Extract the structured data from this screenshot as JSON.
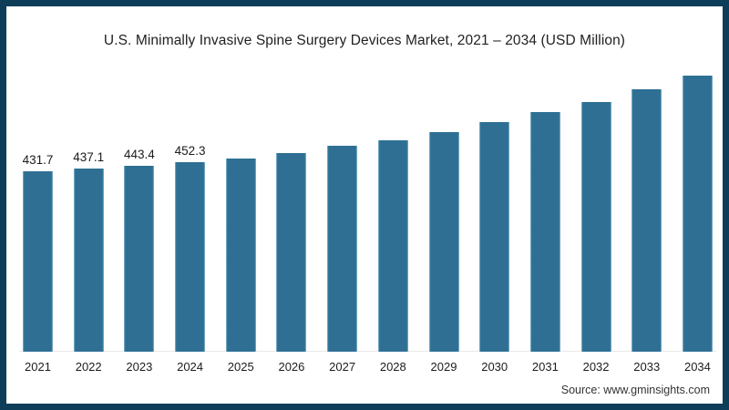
{
  "title": "U.S. Minimally Invasive Spine Surgery Devices Market, 2021 – 2034 (USD Million)",
  "source": "Source: www.gminsights.com",
  "colors": {
    "frame_border": "#0e3d59",
    "bar": "#2e6f93",
    "bar_edge_highlight": "#8fbcd4",
    "title_text": "#212121",
    "axis_text": "#1c1c1c",
    "source_text": "#333333",
    "baseline": "#e9e9e9",
    "background": "#ffffff"
  },
  "chart_data": {
    "type": "bar",
    "title": "U.S. Minimally Invasive Spine Surgery Devices Market, 2021 – 2034 (USD Million)",
    "categories": [
      "2021",
      "2022",
      "2023",
      "2024",
      "2025",
      "2026",
      "2027",
      "2028",
      "2029",
      "2030",
      "2031",
      "2032",
      "2033",
      "2034"
    ],
    "values": [
      431.7,
      437.1,
      443.4,
      452.3,
      462,
      475,
      492,
      505,
      525,
      549,
      573,
      597,
      627,
      660
    ],
    "value_labels": [
      "431.7",
      "437.1",
      "443.4",
      "452.3",
      "",
      "",
      "",
      "",
      "",
      "",
      "",
      "",
      "",
      ""
    ],
    "xlabel": "",
    "ylabel": "USD Million",
    "ylim": [
      0,
      675
    ],
    "grid": false,
    "legend": false,
    "bar_color": "#2e6f93",
    "notes": "Values for 2025-2034 estimated from bar heights; only 2021-2024 carry printed data labels"
  }
}
